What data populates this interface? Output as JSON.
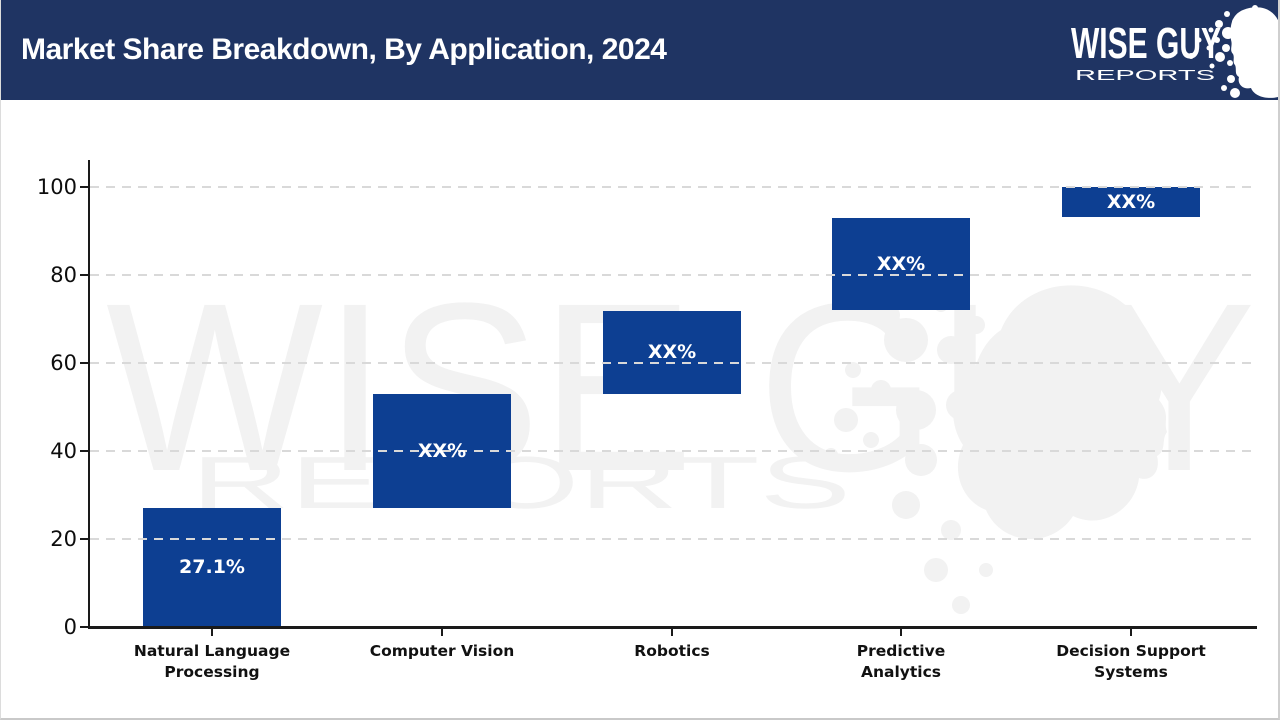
{
  "header": {
    "title": "Market Share Breakdown, By Application, 2024",
    "bg_color": "#1f3463",
    "logo": {
      "line1": "WISE GUY",
      "line2": "REPORTS"
    }
  },
  "watermark": {
    "line1": "WISE GUY",
    "line2": "REPORTS"
  },
  "chart_data": {
    "type": "bar",
    "subtype": "waterfall",
    "title": "Market Share Breakdown, By Application, 2024",
    "categories": [
      "Natural Language Processing",
      "Computer Vision",
      "Robotics",
      "Predictive Analytics",
      "Decision Support Systems"
    ],
    "category_lines": [
      [
        "Natural Language",
        "Processing"
      ],
      [
        "Computer Vision"
      ],
      [
        "Robotics"
      ],
      [
        "Predictive",
        "Analytics"
      ],
      [
        "Decision Support",
        "Systems"
      ]
    ],
    "segments": [
      {
        "category": "Natural Language Processing",
        "start": 0,
        "end": 27.1,
        "label": "27.1%"
      },
      {
        "category": "Computer Vision",
        "start": 27.1,
        "end": 53.0,
        "label": "XX%"
      },
      {
        "category": "Robotics",
        "start": 53.0,
        "end": 71.8,
        "label": "XX%"
      },
      {
        "category": "Predictive Analytics",
        "start": 72.0,
        "end": 93.0,
        "label": "XX%"
      },
      {
        "category": "Decision Support Systems",
        "start": 93.2,
        "end": 100.0,
        "label": "XX%"
      }
    ],
    "yticks": [
      0,
      20,
      40,
      60,
      80,
      100
    ],
    "ylim": [
      0,
      105
    ],
    "xlabel": "",
    "ylabel": "",
    "grid": true,
    "gridline_style": "dashed",
    "legend": "none",
    "bar_color": "#0d3f92",
    "bar_label_color": "#ffffff",
    "watermark_color": "#f2f2f2"
  }
}
